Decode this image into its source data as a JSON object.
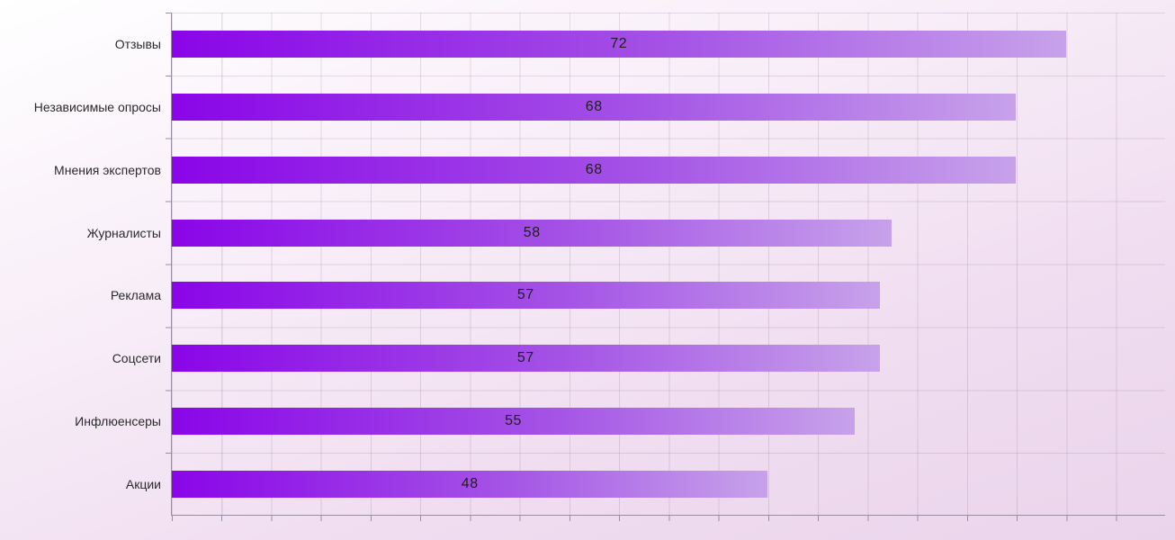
{
  "chart_data": {
    "type": "bar",
    "orientation": "horizontal",
    "title": "",
    "xlabel": "",
    "ylabel": "",
    "categories": [
      "Отзывы",
      "Независимые опросы",
      "Мнения экспертов",
      "Журналисты",
      "Реклама",
      "Соцсети",
      "Инфлюенсеры",
      "Акции"
    ],
    "values": [
      72,
      68,
      68,
      58,
      57,
      57,
      55,
      48
    ],
    "xlim": [
      0,
      80
    ],
    "grid": true,
    "legend": false,
    "colors": {
      "bar_gradient_start": "#8a05e8",
      "bar_gradient_end": "#c7a2ea",
      "background_top": "#ffffff",
      "background_bottom": "#ead4ec",
      "gridline": "#cdbfd1",
      "axis": "#9a8fa0",
      "category_text": "#2b2b2b",
      "value_text": "#1f1f1f"
    }
  }
}
